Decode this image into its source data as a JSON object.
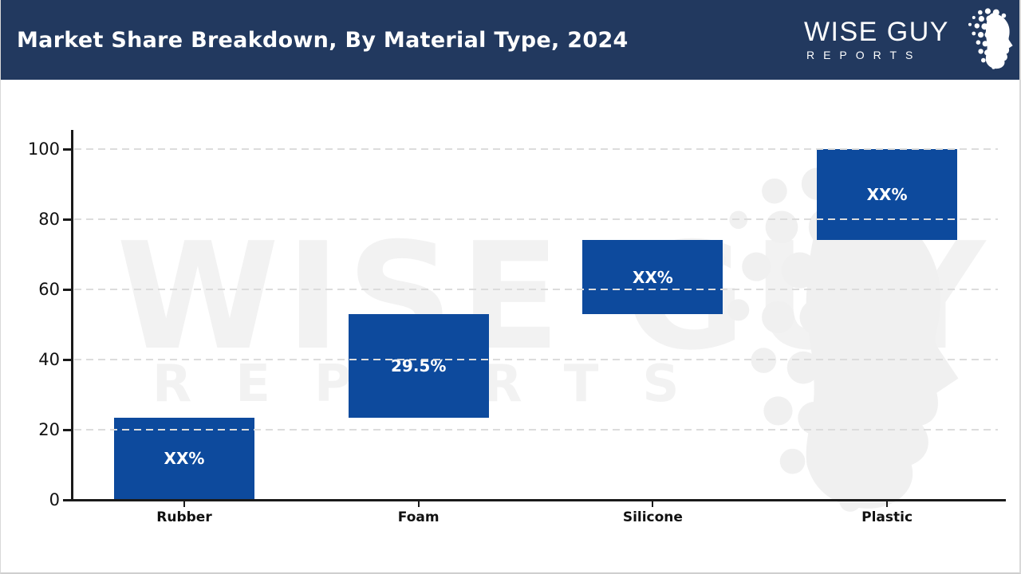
{
  "header": {
    "title": "Market Share Breakdown, By Material Type, 2024",
    "logo": {
      "line1": "WISE GUY",
      "line2": "REPORTS"
    },
    "bg_color": "#22395f",
    "text_color": "#ffffff"
  },
  "watermark": {
    "line1": "WISE GUY",
    "line2": "REPORTS"
  },
  "chart_data": {
    "type": "bar",
    "subtype": "waterfall",
    "title": "Market Share Breakdown, By Material Type, 2024",
    "categories": [
      "Rubber",
      "Foam",
      "Silicone",
      "Plastic"
    ],
    "segments": [
      {
        "category": "Rubber",
        "start": 0,
        "end": 23.5,
        "value_label": "XX%"
      },
      {
        "category": "Foam",
        "start": 23.5,
        "end": 53,
        "value_label": "29.5%"
      },
      {
        "category": "Silicone",
        "start": 53,
        "end": 74,
        "value_label": "XX%"
      },
      {
        "category": "Plastic",
        "start": 74,
        "end": 100,
        "value_label": "XX%"
      }
    ],
    "xlabel": "",
    "ylabel": "",
    "ylim": [
      0,
      100
    ],
    "yticks": [
      0,
      20,
      40,
      60,
      80,
      100
    ],
    "grid": {
      "horizontal": true,
      "style": "dashed",
      "above_bars": true
    },
    "legend": "none",
    "colors": {
      "bar": "#0d4a9d",
      "bar_label": "#ffffff",
      "axis": "#1a1a1a",
      "grid": "#dcdcdc",
      "tick_label": "#111111",
      "category_label": "#111111",
      "watermark": "#f2f2f2"
    }
  }
}
